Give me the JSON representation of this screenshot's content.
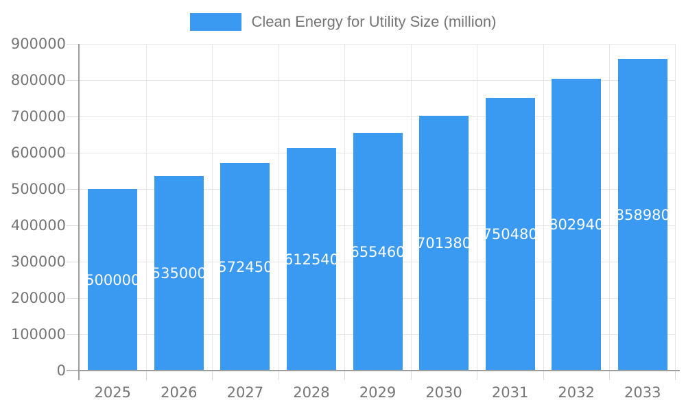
{
  "legend": {
    "label": "Clean Energy for Utility Size (million)"
  },
  "chart_data": {
    "type": "bar",
    "title": "Clean Energy for Utility Size (million)",
    "categories": [
      "2025",
      "2026",
      "2027",
      "2028",
      "2029",
      "2030",
      "2031",
      "2032",
      "2033"
    ],
    "values": [
      500000,
      535000,
      572450,
      612540,
      655460,
      701380,
      750480,
      802940,
      858980
    ],
    "bar_labels": [
      "500000",
      "535000",
      "572450",
      "612540",
      "655460",
      "701380",
      "750480",
      "802940",
      "858980"
    ],
    "xlabel": "",
    "ylabel": "",
    "ylim": [
      0,
      900000
    ],
    "y_tick_step": 100000,
    "y_tick_labels": [
      "0",
      "100000",
      "200000",
      "300000",
      "400000",
      "500000",
      "600000",
      "700000",
      "800000",
      "900000"
    ],
    "grid": true,
    "legend_position": "top-center"
  },
  "colors": {
    "bar": "#3A99F0",
    "gridline": "#e6e6e6",
    "tick": "#d9d9d9",
    "axis": "#9e9e9e",
    "axis_text": "#757575",
    "bar_label_text": "#ffffff",
    "background": "#ffffff"
  }
}
